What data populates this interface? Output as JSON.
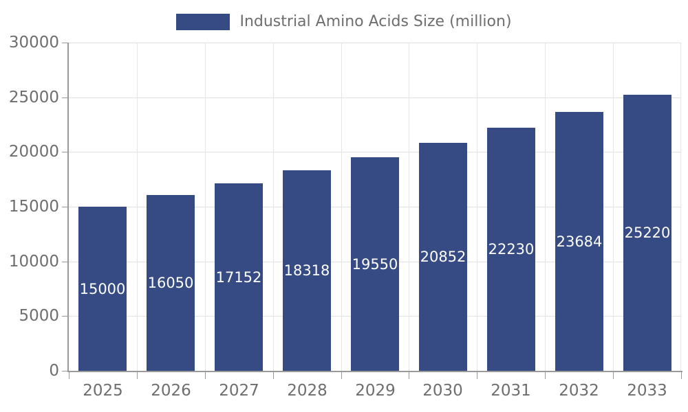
{
  "legend": {
    "label": "Industrial Amino Acids Size (million)"
  },
  "colors": {
    "bar": "#364a84",
    "grid_horizontal": "#e0e0e0",
    "grid_vertical": "#e5e5e5",
    "axis": "#999999",
    "tick_label": "#6e6e6e",
    "legend_text": "#6e6e6e",
    "value_label": "#ffffff",
    "background": "#ffffff"
  },
  "chart_data": {
    "type": "bar",
    "title": "Industrial Amino Acids Size (million)",
    "categories": [
      "2025",
      "2026",
      "2027",
      "2028",
      "2029",
      "2030",
      "2031",
      "2032",
      "2033"
    ],
    "values": [
      15000,
      16050,
      17152,
      18318,
      19550,
      20852,
      22230,
      23684,
      25220
    ],
    "series_name": "Industrial Amino Acids Size (million)",
    "xlabel": "",
    "ylabel": "",
    "ylim": [
      0,
      30000
    ],
    "yticks": [
      0,
      5000,
      10000,
      15000,
      20000,
      25000,
      30000
    ],
    "grid": true,
    "legend_position": "top-center",
    "value_label_position": "inside-center"
  }
}
